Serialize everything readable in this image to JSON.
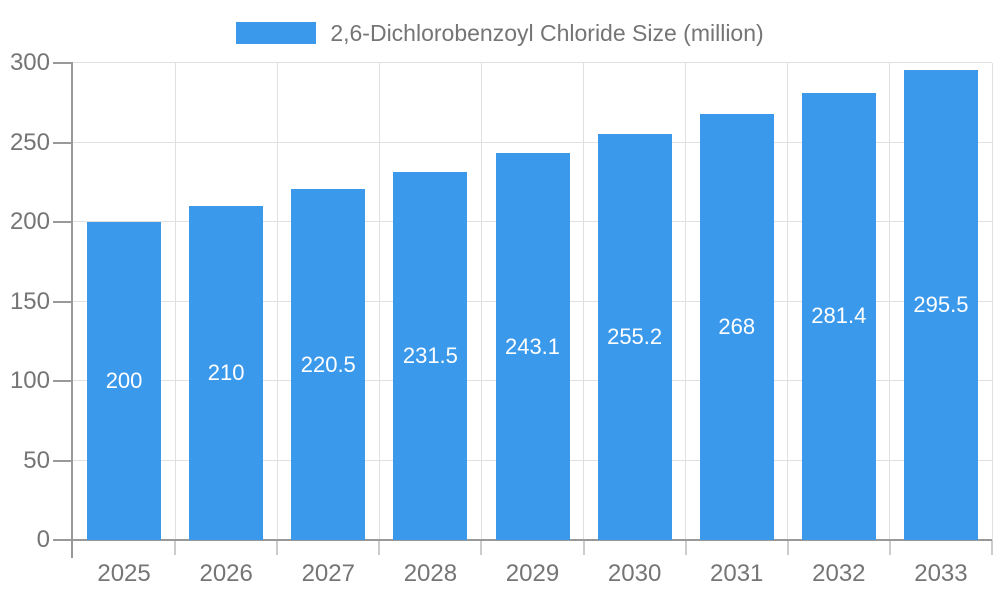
{
  "legend": {
    "label": "2,6-Dichlorobenzoyl Chloride Size (million)"
  },
  "chart_data": {
    "type": "bar",
    "title": "",
    "xlabel": "",
    "ylabel": "",
    "categories": [
      "2025",
      "2026",
      "2027",
      "2028",
      "2029",
      "2030",
      "2031",
      "2032",
      "2033"
    ],
    "series": [
      {
        "name": "2,6-Dichlorobenzoyl Chloride Size (million)",
        "values": [
          200,
          210,
          220.5,
          231.5,
          243.1,
          255.2,
          268,
          281.4,
          295.5
        ]
      }
    ],
    "value_labels": [
      "200",
      "210",
      "220.5",
      "231.5",
      "243.1",
      "255.2",
      "268",
      "281.4",
      "295.5"
    ],
    "ylim": [
      0,
      300
    ],
    "y_ticks": [
      0,
      50,
      100,
      150,
      200,
      250,
      300
    ],
    "grid": true,
    "legend_position": "top-center",
    "colors": {
      "bar": "#3B99EC",
      "grid": "#e0e0e0",
      "axis": "#999999",
      "boundary_tick": "#cccccc",
      "text": "#757575",
      "value_label": "#ffffff"
    }
  }
}
